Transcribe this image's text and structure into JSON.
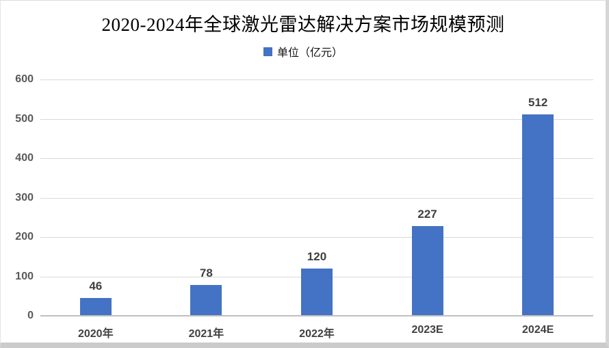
{
  "chart": {
    "title": "2020-2024年全球激光雷达解决方案市场规模预测",
    "legend_label": "单位（亿元）"
  },
  "chart_data": {
    "type": "bar",
    "title": "2020-2024年全球激光雷达解决方案市场规模预测",
    "legend": [
      "单位（亿元）"
    ],
    "legend_position": "top",
    "categories": [
      "2020年",
      "2021年",
      "2022年",
      "2023E",
      "2024E"
    ],
    "values": [
      46,
      78,
      120,
      227,
      512
    ],
    "xlabel": "",
    "ylabel": "",
    "ylim": [
      0,
      600
    ],
    "yticks": [
      0,
      100,
      200,
      300,
      400,
      500,
      600
    ],
    "grid": true,
    "colors": {
      "bar": "#4472C4",
      "gridline": "#d9d9d9",
      "axis_line": "#bfbfbf",
      "tick_label": "#595959",
      "data_label": "#3f3f3f",
      "title": "#000000"
    }
  }
}
